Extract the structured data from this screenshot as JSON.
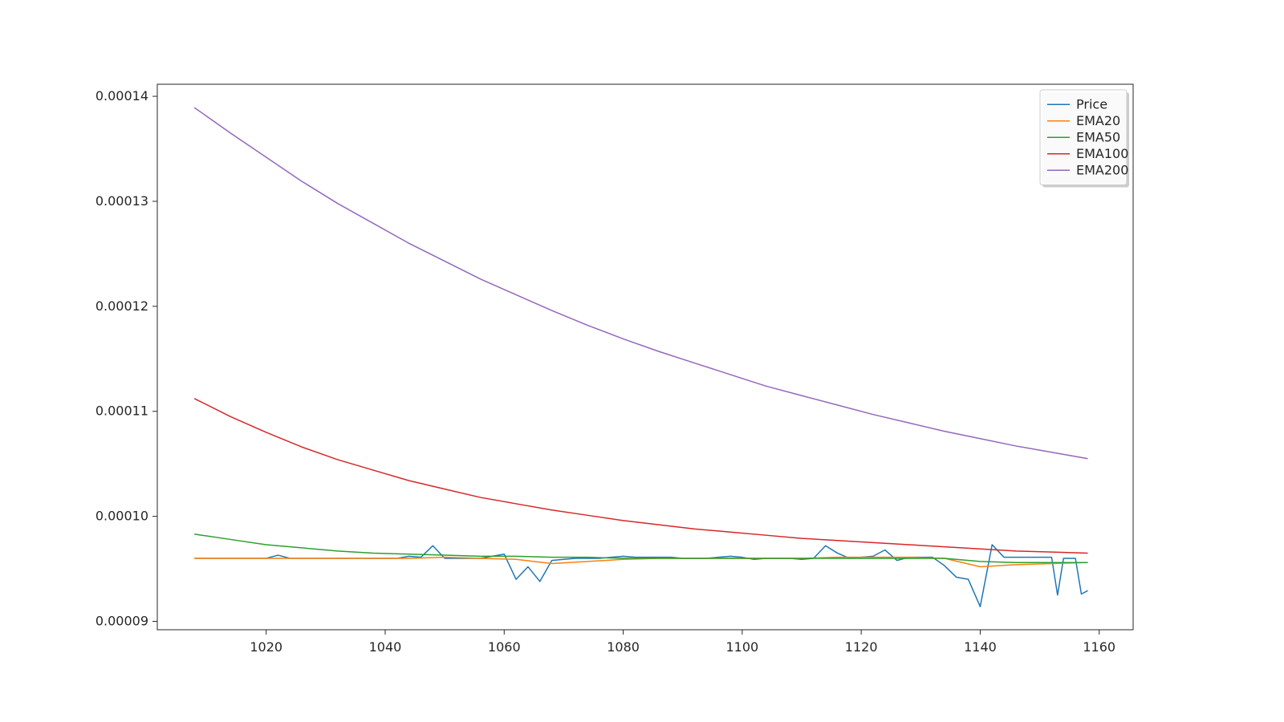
{
  "figure": {
    "background": "#ffffff",
    "frame_color": "#262626",
    "text_color": "#262626"
  },
  "chart_data": {
    "type": "line",
    "title": "",
    "xlabel": "",
    "ylabel": "",
    "grid": false,
    "legend_position": "upper right",
    "xlim": [
      1001.7,
      1165.7
    ],
    "ylim": [
      8.92e-05,
      0.00014115
    ],
    "x_ticks": [
      1020,
      1040,
      1060,
      1080,
      1100,
      1120,
      1140,
      1160
    ],
    "x_tick_labels": [
      "1020",
      "1040",
      "1060",
      "1080",
      "1100",
      "1120",
      "1140",
      "1160"
    ],
    "y_ticks": [
      9e-05,
      0.0001,
      0.00011,
      0.00012,
      0.00013,
      0.00014
    ],
    "y_tick_labels": [
      "0.00009",
      "0.00010",
      "0.00011",
      "0.00012",
      "0.00013",
      "0.00014"
    ],
    "legend": [
      "Price",
      "EMA20",
      "EMA50",
      "EMA100",
      "EMA200"
    ],
    "series": [
      {
        "name": "Price",
        "color": "#1f77b4",
        "x": [
          1008,
          1010,
          1012,
          1014,
          1016,
          1018,
          1020,
          1022,
          1024,
          1026,
          1028,
          1030,
          1032,
          1034,
          1036,
          1038,
          1040,
          1042,
          1044,
          1046,
          1048,
          1050,
          1052,
          1054,
          1056,
          1058,
          1060,
          1062,
          1064,
          1066,
          1068,
          1070,
          1072,
          1074,
          1076,
          1078,
          1080,
          1082,
          1084,
          1086,
          1088,
          1090,
          1092,
          1094,
          1096,
          1098,
          1100,
          1102,
          1104,
          1106,
          1108,
          1110,
          1112,
          1114,
          1116,
          1118,
          1120,
          1122,
          1124,
          1126,
          1128,
          1130,
          1132,
          1134,
          1136,
          1138,
          1140,
          1142,
          1144,
          1146,
          1148,
          1150,
          1152,
          1153,
          1154,
          1156,
          1157,
          1158
        ],
        "y": [
          9.6e-05,
          9.6e-05,
          9.6e-05,
          9.6e-05,
          9.6e-05,
          9.6e-05,
          9.6e-05,
          9.63e-05,
          9.6e-05,
          9.6e-05,
          9.6e-05,
          9.6e-05,
          9.6e-05,
          9.6e-05,
          9.6e-05,
          9.6e-05,
          9.6e-05,
          9.6e-05,
          9.62e-05,
          9.61e-05,
          9.72e-05,
          9.6e-05,
          9.6e-05,
          9.6e-05,
          9.6e-05,
          9.62e-05,
          9.64e-05,
          9.4e-05,
          9.52e-05,
          9.38e-05,
          9.58e-05,
          9.59e-05,
          9.6e-05,
          9.6e-05,
          9.6e-05,
          9.61e-05,
          9.62e-05,
          9.61e-05,
          9.61e-05,
          9.61e-05,
          9.61e-05,
          9.6e-05,
          9.6e-05,
          9.6e-05,
          9.61e-05,
          9.62e-05,
          9.61e-05,
          9.59e-05,
          9.6e-05,
          9.6e-05,
          9.6e-05,
          9.59e-05,
          9.6e-05,
          9.72e-05,
          9.65e-05,
          9.6e-05,
          9.61e-05,
          9.62e-05,
          9.68e-05,
          9.58e-05,
          9.61e-05,
          9.61e-05,
          9.61e-05,
          9.53e-05,
          9.42e-05,
          9.4e-05,
          9.14e-05,
          9.73e-05,
          9.61e-05,
          9.61e-05,
          9.61e-05,
          9.61e-05,
          9.61e-05,
          9.25e-05,
          9.6e-05,
          9.6e-05,
          9.26e-05,
          9.29e-05
        ]
      },
      {
        "name": "EMA20",
        "color": "#ff7f0e",
        "x": [
          1008,
          1014,
          1020,
          1026,
          1032,
          1038,
          1044,
          1050,
          1056,
          1062,
          1068,
          1074,
          1080,
          1086,
          1092,
          1098,
          1104,
          1110,
          1116,
          1122,
          1128,
          1134,
          1140,
          1146,
          1152,
          1158
        ],
        "y": [
          9.6e-05,
          9.6e-05,
          9.6e-05,
          9.6e-05,
          9.6e-05,
          9.6e-05,
          9.6e-05,
          9.61e-05,
          9.6e-05,
          9.59e-05,
          9.55e-05,
          9.57e-05,
          9.59e-05,
          9.6e-05,
          9.6e-05,
          9.6e-05,
          9.6e-05,
          9.6e-05,
          9.61e-05,
          9.61e-05,
          9.61e-05,
          9.6e-05,
          9.52e-05,
          9.54e-05,
          9.55e-05,
          9.56e-05
        ]
      },
      {
        "name": "EMA50",
        "color": "#2ca02c",
        "x": [
          1008,
          1014,
          1020,
          1026,
          1032,
          1038,
          1044,
          1050,
          1056,
          1062,
          1068,
          1074,
          1080,
          1086,
          1092,
          1098,
          1104,
          1110,
          1116,
          1122,
          1128,
          1134,
          1140,
          1146,
          1152,
          1158
        ],
        "y": [
          9.83e-05,
          9.78e-05,
          9.73e-05,
          9.7e-05,
          9.67e-05,
          9.65e-05,
          9.64e-05,
          9.63e-05,
          9.62e-05,
          9.62e-05,
          9.61e-05,
          9.61e-05,
          9.6e-05,
          9.6e-05,
          9.6e-05,
          9.6e-05,
          9.6e-05,
          9.6e-05,
          9.6e-05,
          9.6e-05,
          9.6e-05,
          9.6e-05,
          9.57e-05,
          9.56e-05,
          9.56e-05,
          9.56e-05
        ]
      },
      {
        "name": "EMA100",
        "color": "#d62728",
        "x": [
          1008,
          1014,
          1020,
          1026,
          1032,
          1038,
          1044,
          1050,
          1056,
          1062,
          1068,
          1074,
          1080,
          1086,
          1092,
          1098,
          1104,
          1110,
          1116,
          1122,
          1128,
          1134,
          1140,
          1146,
          1152,
          1158
        ],
        "y": [
          0.0001112,
          0.0001095,
          0.000108,
          0.0001066,
          0.0001054,
          0.0001044,
          0.0001034,
          0.0001026,
          0.0001018,
          0.0001012,
          0.0001006,
          0.0001001,
          9.96e-05,
          9.92e-05,
          9.88e-05,
          9.85e-05,
          9.82e-05,
          9.79e-05,
          9.77e-05,
          9.75e-05,
          9.73e-05,
          9.71e-05,
          9.69e-05,
          9.67e-05,
          9.66e-05,
          9.65e-05
        ]
      },
      {
        "name": "EMA200",
        "color": "#9467bd",
        "x": [
          1008,
          1014,
          1020,
          1026,
          1032,
          1038,
          1044,
          1050,
          1056,
          1062,
          1068,
          1074,
          1080,
          1086,
          1092,
          1098,
          1104,
          1110,
          1116,
          1122,
          1128,
          1134,
          1140,
          1146,
          1152,
          1158
        ],
        "y": [
          0.0001389,
          0.0001365,
          0.0001342,
          0.0001319,
          0.0001298,
          0.0001279,
          0.000126,
          0.0001243,
          0.0001226,
          0.0001211,
          0.0001196,
          0.0001182,
          0.0001169,
          0.0001157,
          0.0001146,
          0.0001135,
          0.0001124,
          0.0001115,
          0.0001106,
          0.0001097,
          0.0001089,
          0.0001081,
          0.0001074,
          0.0001067,
          0.0001061,
          0.0001055
        ]
      }
    ]
  }
}
